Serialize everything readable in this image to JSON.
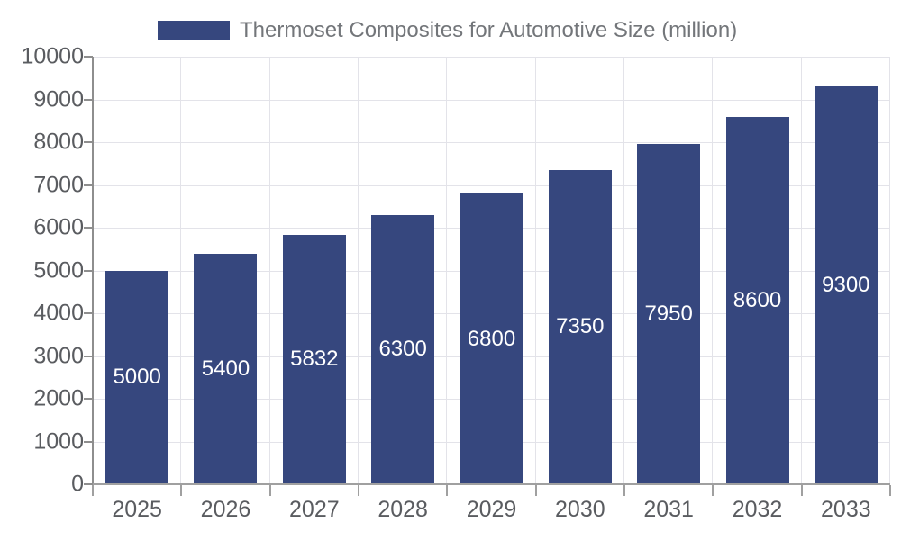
{
  "chart_data": {
    "type": "bar",
    "title": "Thermoset Composites for Automotive Size (million)",
    "categories": [
      "2025",
      "2026",
      "2027",
      "2028",
      "2029",
      "2030",
      "2031",
      "2032",
      "2033"
    ],
    "values": [
      5000,
      5400,
      5832,
      6300,
      6800,
      7350,
      7950,
      8600,
      9300
    ],
    "xlabel": "",
    "ylabel": "",
    "ylim": [
      0,
      10000
    ],
    "ytick_step": 1000,
    "grid": true,
    "legend_position": "top",
    "bar_color": "#36477E",
    "bar_label_color": "#FFFFFF",
    "gridline_color": "#E3E3E9",
    "axis_line_color": "#8E8E8E",
    "axis_label_color": "#5A5C60",
    "title_color": "#73767A"
  },
  "legend": {
    "items": [
      {
        "label": "Thermoset Composites for Automotive Size (million)",
        "color": "#36477E"
      }
    ]
  }
}
